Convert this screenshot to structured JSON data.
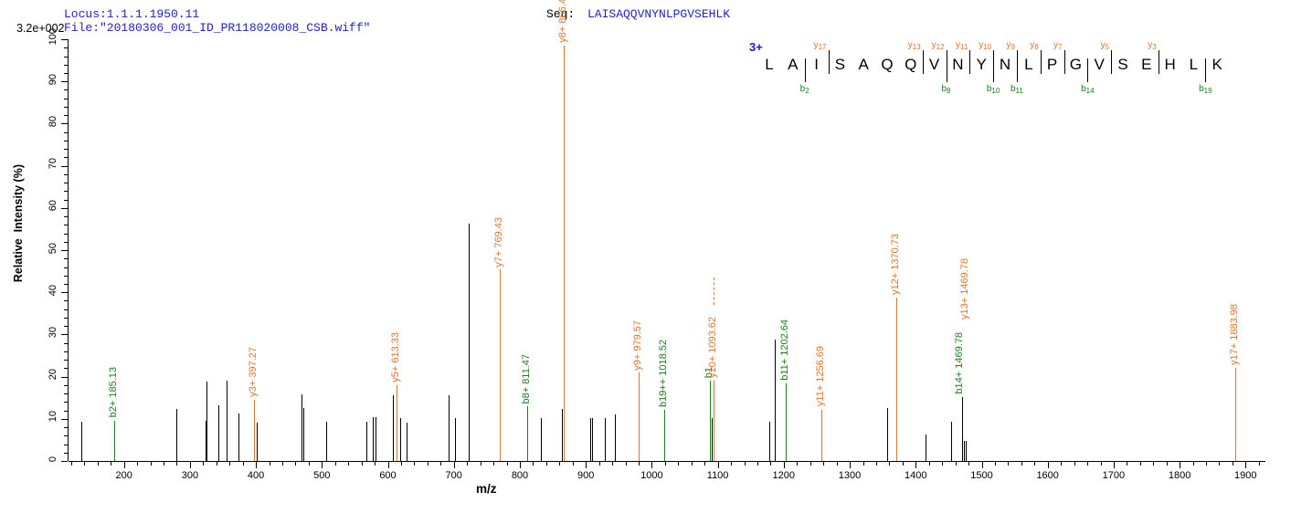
{
  "header": {
    "locus_file": "Locus:1.1.1.1950.11 File:\"20180306_001_ID_PR118020008_CSB.wiff\"",
    "seq_label": "Seq:",
    "sequence": "LAISAQQVNYNLPGVSEHLK",
    "intensity_scale": "3.2e+002"
  },
  "axes": {
    "x_label": "m/z",
    "y_label": "Relative  Intensity (%)"
  },
  "peptide_panel": {
    "charge_label": "3+",
    "residues": [
      "L",
      "A",
      "I",
      "S",
      "A",
      "Q",
      "Q",
      "V",
      "N",
      "Y",
      "N",
      "L",
      "P",
      "G",
      "V",
      "S",
      "E",
      "H",
      "L",
      "K"
    ],
    "y_markers": [
      {
        "label": "y17",
        "after": 3
      },
      {
        "label": "y13",
        "after": 7
      },
      {
        "label": "y12",
        "after": 8
      },
      {
        "label": "y11",
        "after": 9
      },
      {
        "label": "y10",
        "after": 10
      },
      {
        "label": "y9",
        "after": 11
      },
      {
        "label": "y8",
        "after": 12
      },
      {
        "label": "y7",
        "after": 13
      },
      {
        "label": "y5",
        "after": 15
      },
      {
        "label": "y3",
        "after": 17
      }
    ],
    "b_markers": [
      {
        "label": "b2",
        "after": 2
      },
      {
        "label": "b8",
        "after": 8
      },
      {
        "label": "b10",
        "after": 10
      },
      {
        "label": "b11",
        "after": 11
      },
      {
        "label": "b14",
        "after": 14
      },
      {
        "label": "b19",
        "after": 19
      }
    ]
  },
  "colors": {
    "y_ion": "#d9772f",
    "b_ion": "#1e7d1e",
    "peak_default": "#000000",
    "header_blue": "#2424bb",
    "charge_blue": "#1a1acc"
  },
  "chart_data": {
    "type": "bar",
    "title": "MS/MS fragment spectrum",
    "xlabel": "m/z",
    "ylabel": "Relative  Intensity (%)",
    "xlim": [
      116,
      1930
    ],
    "ylim": [
      0,
      100
    ],
    "x_major_ticks": [
      200,
      300,
      400,
      500,
      600,
      700,
      800,
      900,
      1000,
      1100,
      1200,
      1300,
      1400,
      1500,
      1600,
      1700,
      1800,
      1900
    ],
    "x_minor_step": 20,
    "y_major_ticks": [
      0,
      10,
      20,
      30,
      40,
      50,
      60,
      70,
      80,
      90,
      100
    ],
    "y_minor_step": 2,
    "peaks": [
      {
        "mz": 135,
        "i": 9.3
      },
      {
        "mz": 185.13,
        "i": 9.6,
        "ion": "b",
        "label": "b2+ 185.13"
      },
      {
        "mz": 279,
        "i": 12.4
      },
      {
        "mz": 323.5,
        "i": 9.6
      },
      {
        "mz": 325,
        "i": 18.9
      },
      {
        "mz": 343,
        "i": 13.2
      },
      {
        "mz": 355,
        "i": 19.1
      },
      {
        "mz": 373,
        "i": 11.3
      },
      {
        "mz": 397.27,
        "i": 14.5,
        "ion": "y",
        "label": "y3+ 397.27"
      },
      {
        "mz": 401,
        "i": 9.1
      },
      {
        "mz": 469,
        "i": 15.9
      },
      {
        "mz": 472,
        "i": 12.6
      },
      {
        "mz": 506,
        "i": 9.4
      },
      {
        "mz": 567,
        "i": 9.3
      },
      {
        "mz": 577,
        "i": 10.4
      },
      {
        "mz": 581,
        "i": 10.4
      },
      {
        "mz": 608,
        "i": 15.7
      },
      {
        "mz": 613.33,
        "i": 18.0,
        "ion": "y",
        "label": "y5+ 613.33"
      },
      {
        "mz": 619,
        "i": 10.1
      },
      {
        "mz": 628,
        "i": 9.1
      },
      {
        "mz": 692,
        "i": 15.7
      },
      {
        "mz": 702,
        "i": 10.2
      },
      {
        "mz": 722,
        "i": 56.3
      },
      {
        "mz": 769.43,
        "i": 45.4,
        "ion": "y",
        "label": "y7+ 769.43"
      },
      {
        "mz": 811.47,
        "i": 12.9,
        "ion": "b",
        "label": "b8+ 811.47"
      },
      {
        "mz": 832,
        "i": 10.1
      },
      {
        "mz": 863,
        "i": 12.4
      },
      {
        "mz": 866.46,
        "i": 98.6,
        "ion": "y",
        "label": "y8+ 866.46"
      },
      {
        "mz": 906,
        "i": 10.1
      },
      {
        "mz": 909,
        "i": 10.1
      },
      {
        "mz": 929,
        "i": 10.2
      },
      {
        "mz": 944,
        "i": 11.1
      },
      {
        "mz": 979.57,
        "i": 20.9,
        "ion": "y",
        "label": "y9+ 979.57"
      },
      {
        "mz": 1018.52,
        "i": 12.2,
        "ion": "b",
        "label": "b19++ 1018.52"
      },
      {
        "mz": 1088.6,
        "i": 19.1,
        "ion": "b",
        "label": "b1"
      },
      {
        "mz": 1091,
        "i": 10.2
      },
      {
        "mz": 1093.62,
        "i": 19.1,
        "ion": "y",
        "label": "y10+ 1093.62",
        "leader": true
      },
      {
        "mz": 1178,
        "i": 9.3
      },
      {
        "mz": 1186,
        "i": 28.9
      },
      {
        "mz": 1202.64,
        "i": 18.4,
        "ion": "b",
        "label": "b11+ 1202.64"
      },
      {
        "mz": 1256.69,
        "i": 12.2,
        "ion": "y",
        "label": "y11+ 1256.69"
      },
      {
        "mz": 1356,
        "i": 12.6
      },
      {
        "mz": 1370.73,
        "i": 38.7,
        "ion": "y",
        "label": "y12+ 1370.73"
      },
      {
        "mz": 1415,
        "i": 6.3
      },
      {
        "mz": 1453,
        "i": 9.3
      },
      {
        "mz": 1469.78,
        "i": 15.2,
        "labels": [
          {
            "text": "b14+ 1469.78",
            "ion": "b"
          },
          {
            "text": "y13+ 1469.78",
            "ion": "y"
          }
        ]
      },
      {
        "mz": 1473,
        "i": 4.8
      },
      {
        "mz": 1476,
        "i": 4.8
      },
      {
        "mz": 1883.98,
        "i": 22.0,
        "ion": "y",
        "label": "y17+ 1883.98"
      }
    ]
  }
}
